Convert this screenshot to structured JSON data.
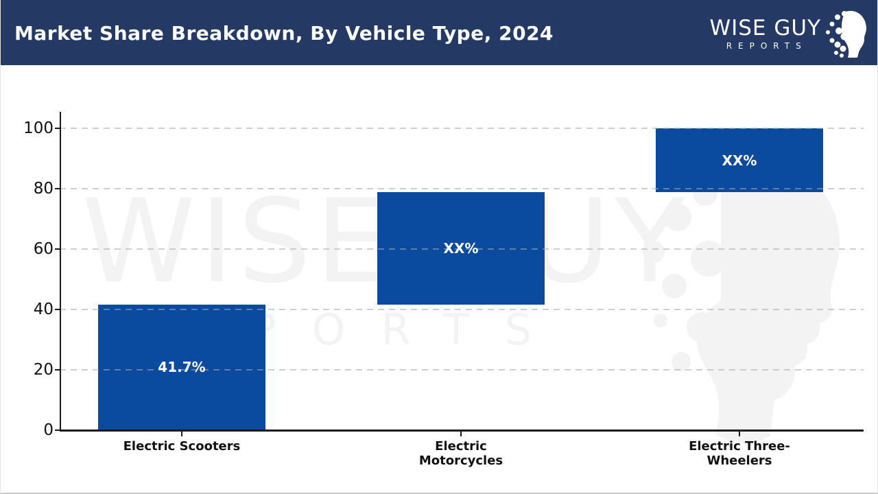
{
  "header": {
    "title": "Market Share Breakdown, By Vehicle Type, 2024",
    "logo": {
      "wordmark": "WISE GUY",
      "reports": "REPORTS"
    }
  },
  "watermark": {
    "line1": "WISE GUY",
    "line2": "REPORTS"
  },
  "colors": {
    "header_bg": "#243A64",
    "bar": "#0A4BA0",
    "bar_label": "#FFFFFF",
    "axis": "#1A1A1A",
    "grid": "#D9D9D9",
    "title_text": "#FFFFFF",
    "tick_text": "#111111",
    "watermark": "#F3F3F4"
  },
  "chart_data": {
    "type": "bar",
    "subtype": "waterfall",
    "title": "Market Share Breakdown, By Vehicle Type, 2024",
    "xlabel": "",
    "ylabel": "",
    "categories": [
      "Electric Scooters",
      "Electric Motorcycles",
      "Electric Three-Wheelers"
    ],
    "category_label_lines": [
      [
        "Electric Scooters"
      ],
      [
        "Electric",
        "Motorcycles"
      ],
      [
        "Electric Three-",
        "Wheelers"
      ]
    ],
    "series": [
      {
        "name": "Market share (%)",
        "segments": [
          {
            "category": "Electric Scooters",
            "start": 0,
            "end": 41.7,
            "label": "41.7%"
          },
          {
            "category": "Electric Motorcycles",
            "start": 41.7,
            "end": 78.8,
            "label": "XX%"
          },
          {
            "category": "Electric Three-Wheelers",
            "start": 78.8,
            "end": 100,
            "label": "XX%"
          }
        ]
      }
    ],
    "yticks": [
      0,
      20,
      40,
      60,
      80,
      100
    ],
    "ylim": [
      0,
      105.5
    ],
    "grid": "horizontal-dashed-above-bars",
    "legend": "none"
  }
}
